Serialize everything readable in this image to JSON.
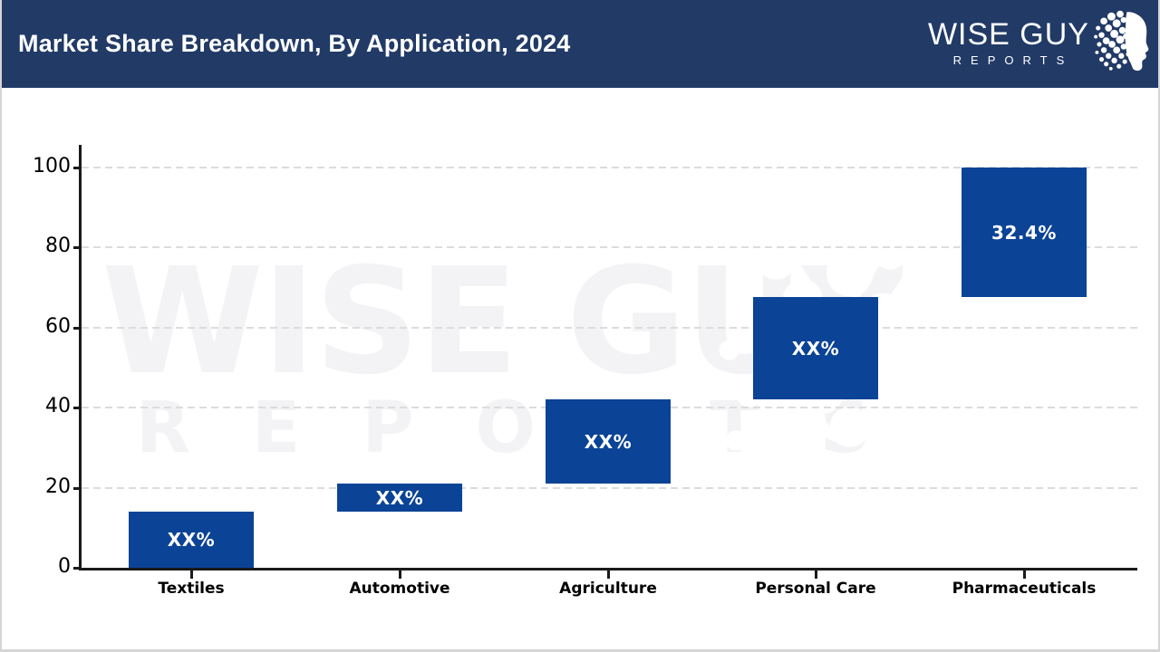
{
  "header": {
    "title": "Market Share Breakdown, By Application, 2024",
    "logo": {
      "line1": "WISE GUY",
      "line2": "REPORTS"
    }
  },
  "watermark": {
    "line1": "WISE GUY",
    "line2": "REPORTS"
  },
  "colors": {
    "header_bg": "#213a66",
    "bar_blue": "#0b4396",
    "gridline": "#dcdcdc",
    "watermark": "#f3f3f5",
    "axis": "#1a1a1a"
  },
  "chart_data": {
    "type": "bar",
    "subtype": "waterfall",
    "title": "Market Share Breakdown, By Application, 2024",
    "xlabel": "",
    "ylabel": "",
    "categories": [
      "Textiles",
      "Automotive",
      "Agriculture",
      "Personal Care",
      "Pharmaceuticals"
    ],
    "segments": [
      {
        "category": "Textiles",
        "start": 0,
        "end": 14,
        "value": 14,
        "label": "XX%"
      },
      {
        "category": "Automotive",
        "start": 14,
        "end": 21,
        "value": 7,
        "label": "XX%"
      },
      {
        "category": "Agriculture",
        "start": 21,
        "end": 42,
        "value": 21,
        "label": "XX%"
      },
      {
        "category": "Personal Care",
        "start": 42,
        "end": 67.6,
        "value": 25.6,
        "label": "XX%"
      },
      {
        "category": "Pharmaceuticals",
        "start": 67.6,
        "end": 100,
        "value": 32.4,
        "label": "32.4%"
      }
    ],
    "yticks": [
      0,
      20,
      40,
      60,
      80,
      100
    ],
    "ylim": [
      0,
      105
    ],
    "grid": "horizontal-dashed",
    "legend": "none",
    "bar_color": "#0b4396"
  }
}
